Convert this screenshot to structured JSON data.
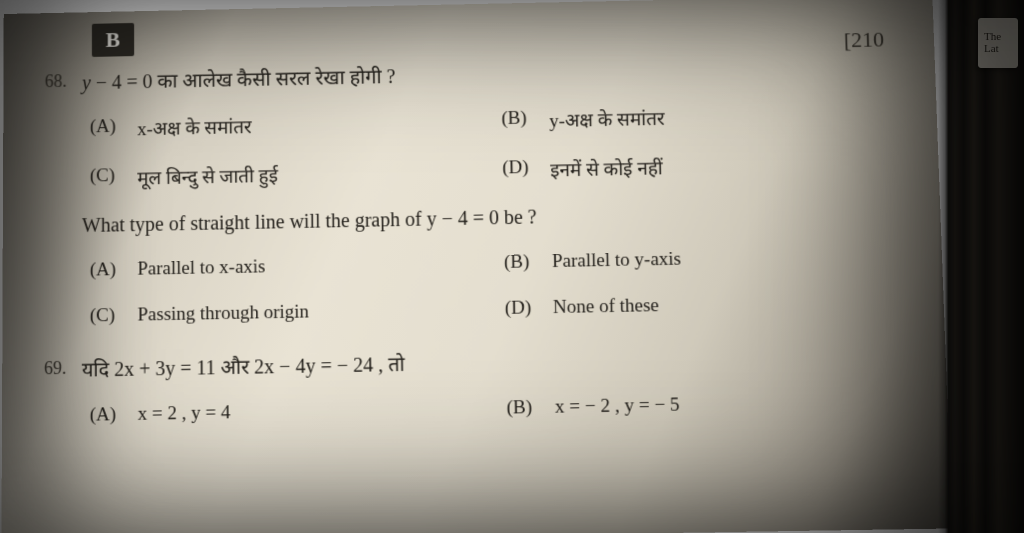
{
  "colors": {
    "paper_bg": "linear-gradient(115deg, #6f6b62 0%, #9a958a 8%, #d7d1c3 20%, #e9e3d4 38%, #e4decf 55%, #cfc9ba 72%, #9e988c 88%, #5e5a52 100%)",
    "badge_bg": "#2f2c26",
    "text": "#24211c",
    "muted": "#3b372f"
  },
  "section_label": "B",
  "page_ref": "[210",
  "stub": {
    "line1": "The",
    "line2": "Lat"
  },
  "q68": {
    "number": "68.",
    "hindi": "y − 4 = 0 का आलेख कैसी सरल रेखा होगी ?",
    "options_hi": {
      "A": "x-अक्ष के समांतर",
      "B": "y-अक्ष के समांतर",
      "C": "मूल बिन्दु से जाती हुई",
      "D": "इनमें से कोई नहीं"
    },
    "english": "What type of straight line will the graph of y − 4 = 0 be ?",
    "options_en": {
      "A": "Parallel to x-axis",
      "B": "Parallel to y-axis",
      "C": "Passing through origin",
      "D": "None of these"
    }
  },
  "q69": {
    "number": "69.",
    "hindi": "यदि 2x + 3y = 11 और 2x − 4y = − 24 , तो",
    "options": {
      "A": "x = 2 , y = 4",
      "B": "x = − 2 , y = − 5"
    }
  },
  "labels": {
    "A": "(A)",
    "B": "(B)",
    "C": "(C)",
    "D": "(D)"
  }
}
